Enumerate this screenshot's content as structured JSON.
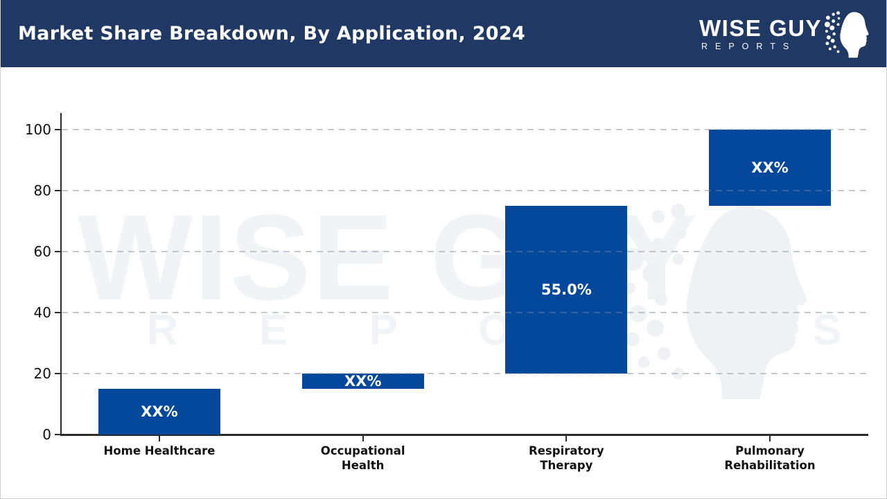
{
  "header": {
    "title": "Market Share Breakdown, By Application, 2024",
    "bg_color": "#1f3864",
    "logo": {
      "name": "WISE GUY",
      "sub": "REPORTS"
    }
  },
  "watermark": {
    "big_text": "WISE GUY",
    "sub_text": "R E P O R T S"
  },
  "chart_data": {
    "type": "bar",
    "variant": "floating-segment (waterfall-style market share)",
    "title": "Market Share Breakdown, By Application, 2024",
    "unit": "%",
    "categories": [
      "Home Healthcare",
      "Occupational Health",
      "Respiratory Therapy",
      "Pulmonary Rehabilitation"
    ],
    "bars": [
      {
        "category": "Home Healthcare",
        "label_lines": [
          "Home Healthcare"
        ],
        "start": 0,
        "end": 15,
        "value_label": "XX%"
      },
      {
        "category": "Occupational Health",
        "label_lines": [
          "Occupational",
          "Health"
        ],
        "start": 15,
        "end": 20,
        "value_label": "XX%"
      },
      {
        "category": "Respiratory Therapy",
        "label_lines": [
          "Respiratory",
          "Therapy"
        ],
        "start": 20,
        "end": 75,
        "value_label": "55.0%"
      },
      {
        "category": "Pulmonary Rehabilitation",
        "label_lines": [
          "Pulmonary",
          "Rehabilitation"
        ],
        "start": 75,
        "end": 100,
        "value_label": "XX%"
      }
    ],
    "ylim": [
      0,
      100
    ],
    "yticks": [
      0,
      20,
      40,
      60,
      80,
      100
    ],
    "xlabel": "",
    "ylabel": "",
    "grid": {
      "axis": "y",
      "style": "dashed",
      "drawn_over_bars": true
    },
    "legend": "none",
    "bar_color": "#04489c",
    "grid_color": "#d9d9d9",
    "axis_color": "#2b2b2b",
    "value_label_color": "#ffffff"
  }
}
